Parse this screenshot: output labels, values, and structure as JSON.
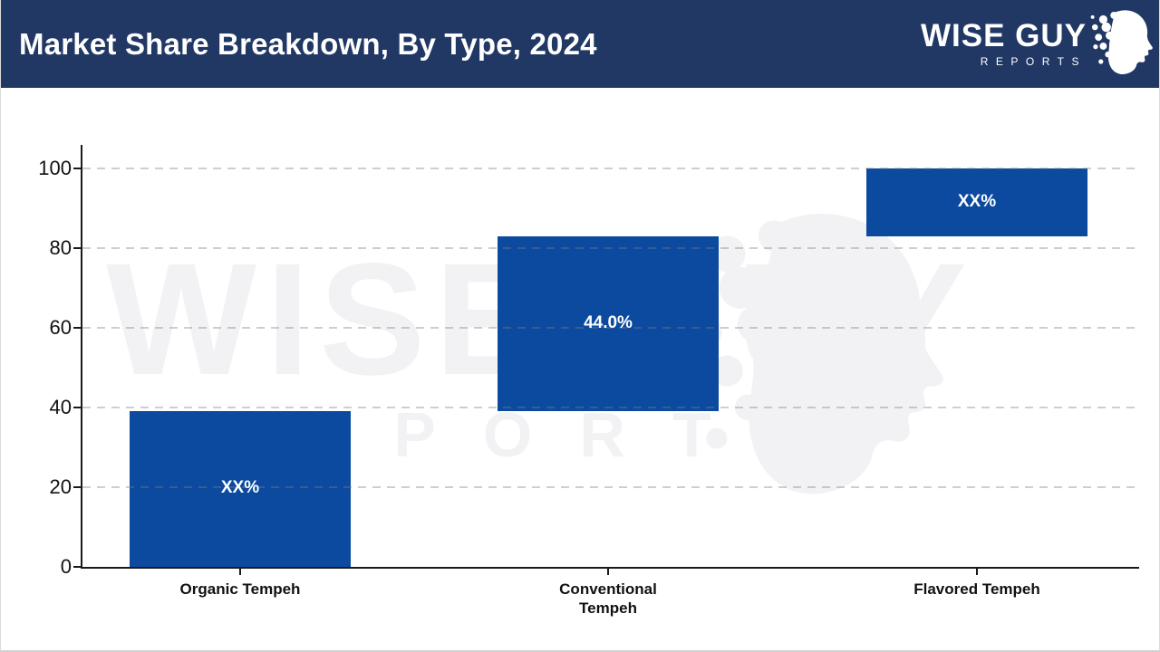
{
  "header": {
    "title": "Market Share Breakdown, By Type, 2024",
    "logo": {
      "name": "Wise Guy Reports",
      "line1": "WISE GUY",
      "line2": "REPORTS"
    }
  },
  "watermark": {
    "line1": "WISE GUY",
    "line2": "REPORTS"
  },
  "chart_data": {
    "type": "bar",
    "subtype": "floating-segment-waterfall",
    "title": "Market Share Breakdown, By Type, 2024",
    "categories": [
      "Organic Tempeh",
      "Conventional Tempeh",
      "Flavored Tempeh"
    ],
    "bars": [
      {
        "category": "Organic Tempeh",
        "start": 0,
        "end": 39,
        "size": 39,
        "label": "XX%"
      },
      {
        "category": "Conventional Tempeh",
        "start": 39,
        "end": 83,
        "size": 44,
        "label": "44.0%"
      },
      {
        "category": "Flavored Tempeh",
        "start": 83,
        "end": 100,
        "size": 17,
        "label": "XX%"
      }
    ],
    "yticks": [
      0,
      20,
      40,
      60,
      80,
      100
    ],
    "ylim": [
      0,
      100
    ],
    "xlabel": "",
    "ylabel": "",
    "grid": "horizontal-dashed",
    "legend": "none",
    "bar_color": "#0b4a9f",
    "bar_label_color": "#ffffff"
  },
  "colors": {
    "header_bg": "#213865",
    "bar_blue": "#0b4a9f",
    "watermark": "#f2f2f5",
    "axis": "#1a1a1a"
  }
}
